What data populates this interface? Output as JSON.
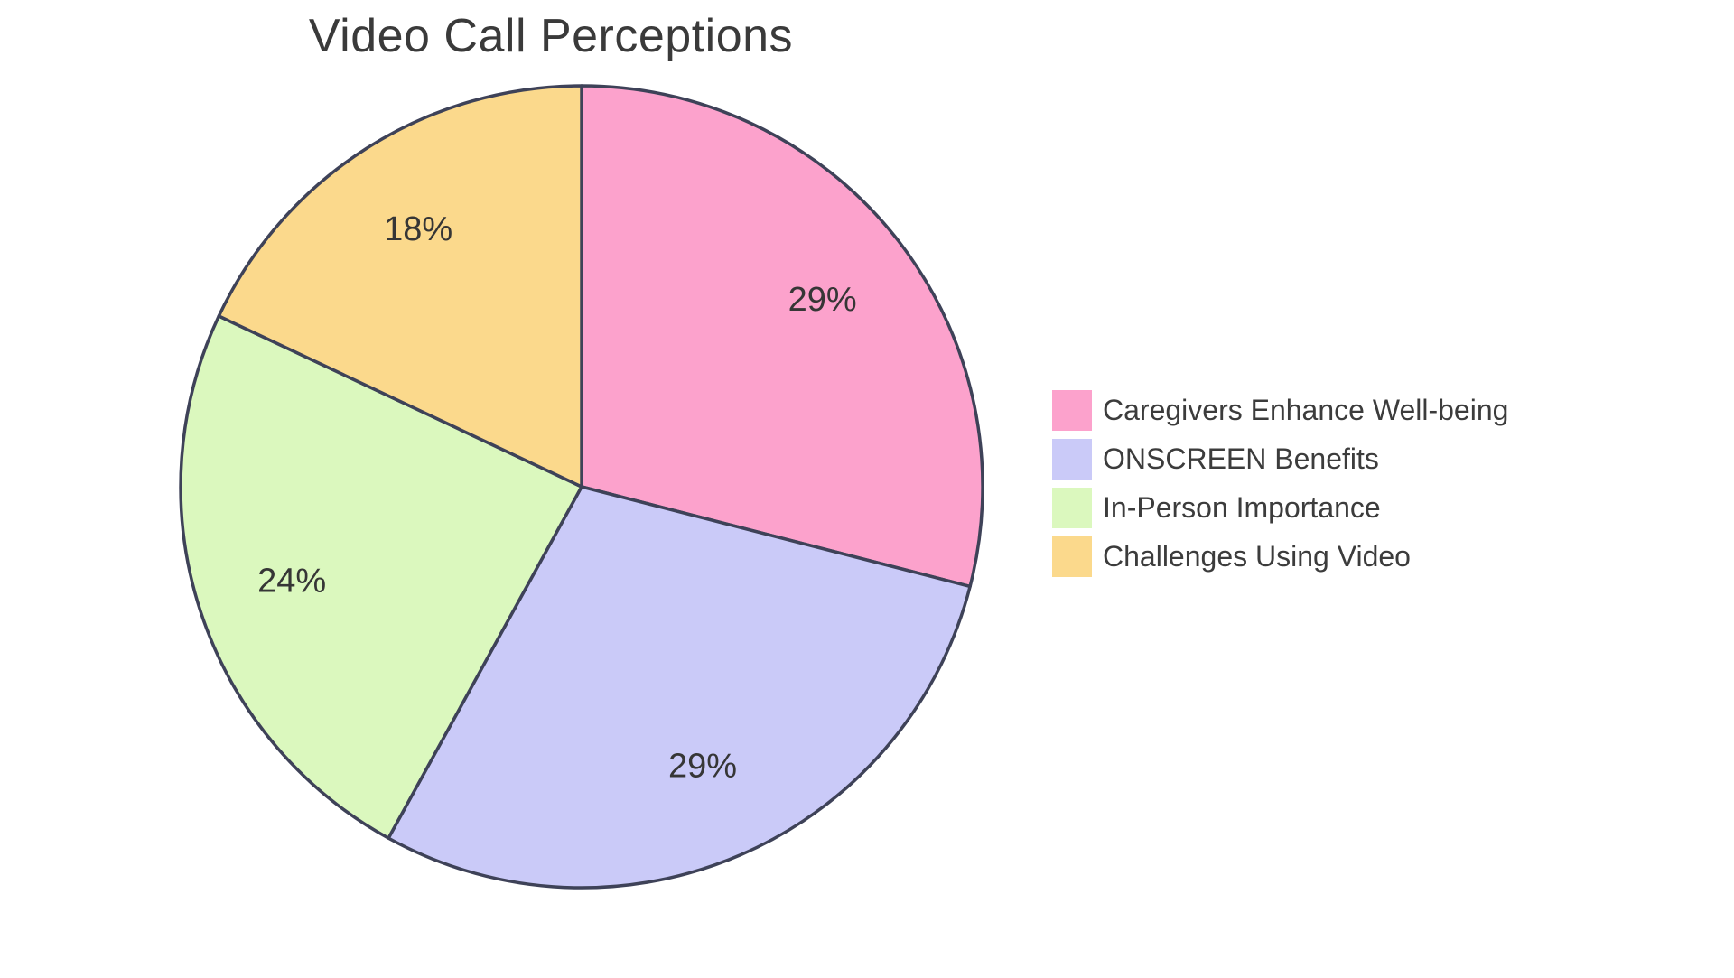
{
  "chart_data": {
    "type": "pie",
    "title": "Video Call Perceptions",
    "slices": [
      {
        "label": "Caregivers Enhance Well-being",
        "value": 29,
        "percent_label": "29%",
        "color": "#FCA2CC"
      },
      {
        "label": "ONSCREEN Benefits",
        "value": 29,
        "percent_label": "29%",
        "color": "#CACAF8"
      },
      {
        "label": "In-Person Importance",
        "value": 24,
        "percent_label": "24%",
        "color": "#DBF8BE"
      },
      {
        "label": "Challenges Using Video",
        "value": 18,
        "percent_label": "18%",
        "color": "#FBD98C"
      }
    ],
    "start_angle_deg": 90,
    "direction": "clockwise",
    "legend_position": "right",
    "slice_border_color": "#3E4258",
    "percent_label_color": "#363636",
    "title_color": "#3A3A3A",
    "background_color": "#FFFFFF"
  }
}
